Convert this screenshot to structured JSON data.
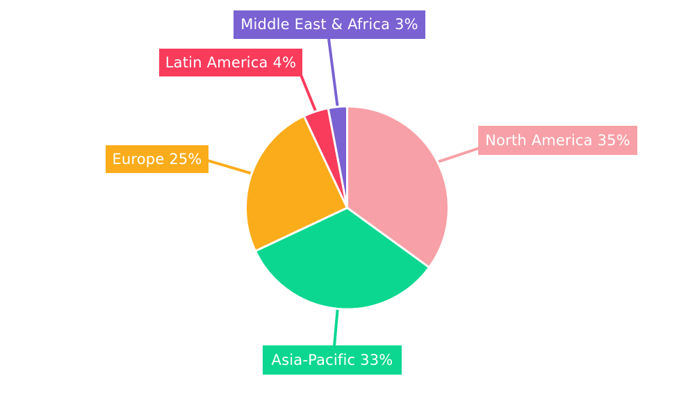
{
  "figure": {
    "background": "#ffffff",
    "label_text_color": "#ffffff"
  },
  "chart_data": {
    "type": "pie",
    "units": "%",
    "start_angle": "12-oclock",
    "direction": "clockwise",
    "legend": "none",
    "labels_style": "external-callout-boxes-with-leader-lines",
    "slices": [
      {
        "label": "North America",
        "value": 35,
        "display": "North America 35%",
        "color": "#F8A0A7"
      },
      {
        "label": "Asia-Pacific",
        "value": 33,
        "display": "Asia-Pacific 33%",
        "color": "#0CD790"
      },
      {
        "label": "Europe",
        "value": 25,
        "display": "Europe 25%",
        "color": "#FBAC1B"
      },
      {
        "label": "Latin America",
        "value": 4,
        "display": "Latin America 4%",
        "color": "#F93C5C"
      },
      {
        "label": "Middle East & Africa",
        "value": 3,
        "display": "Middle East & Africa 3%",
        "color": "#7A62D2"
      }
    ]
  }
}
